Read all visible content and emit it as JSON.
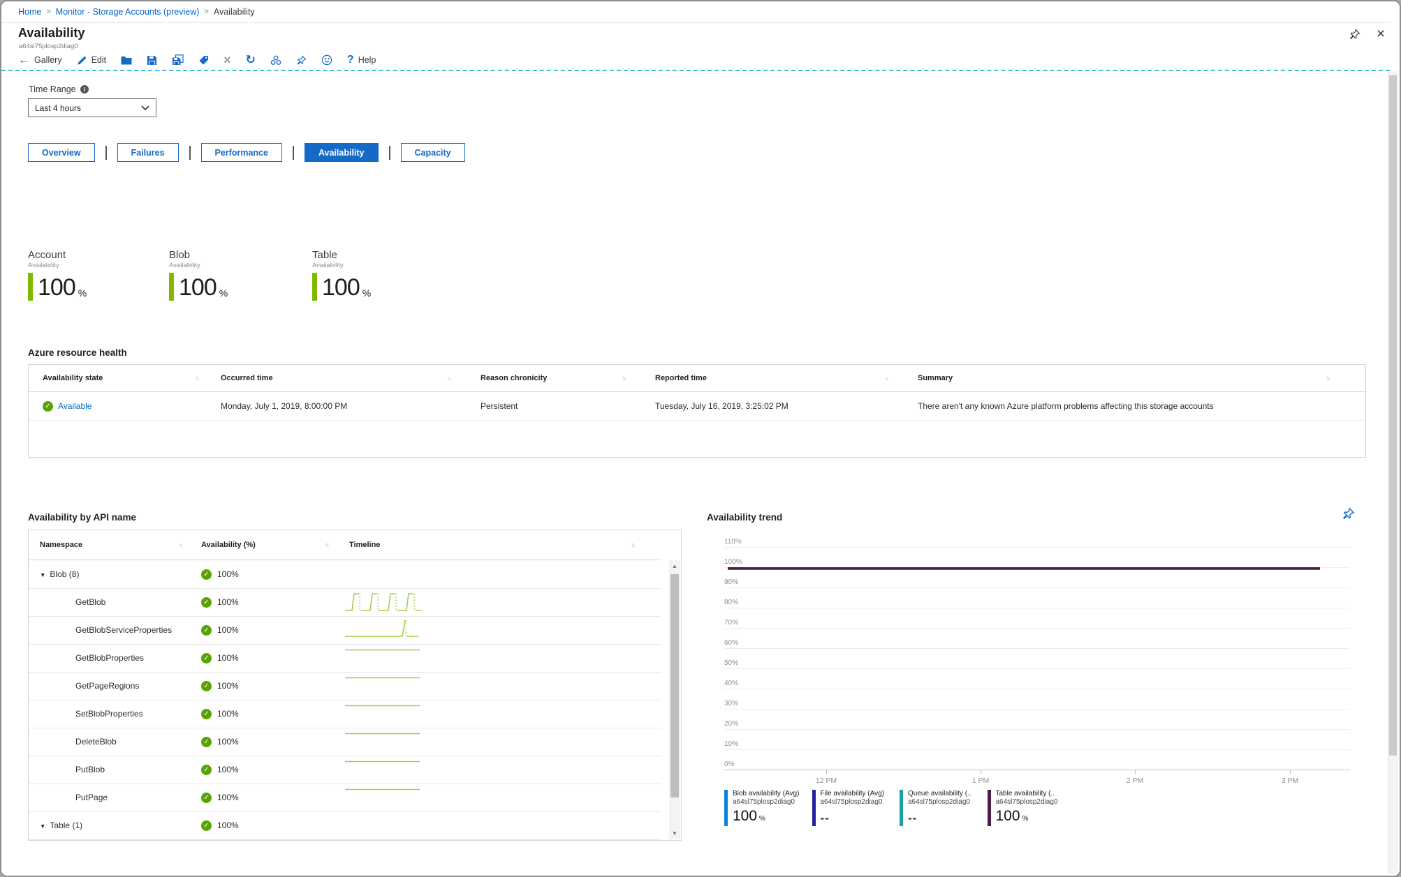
{
  "breadcrumb": {
    "items": [
      {
        "label": "Home",
        "link": true
      },
      {
        "label": "Monitor - Storage Accounts (preview)",
        "link": true
      },
      {
        "label": "Availability",
        "link": false
      }
    ],
    "separator": ">"
  },
  "header": {
    "title": "Availability",
    "subtitle": "a64sl75plosp2diag0"
  },
  "toolbar": {
    "items": [
      {
        "id": "gallery",
        "icon": "back-arrow",
        "label": "Gallery"
      },
      {
        "id": "edit",
        "icon": "pencil",
        "label": "Edit"
      },
      {
        "id": "open",
        "icon": "folder",
        "label": ""
      },
      {
        "id": "save",
        "icon": "save",
        "label": ""
      },
      {
        "id": "save-as",
        "icon": "save-copy",
        "label": ""
      },
      {
        "id": "tag",
        "icon": "tag",
        "label": ""
      },
      {
        "id": "discard",
        "icon": "close-x",
        "label": ""
      },
      {
        "id": "refresh",
        "icon": "refresh",
        "label": ""
      },
      {
        "id": "share",
        "icon": "cluster",
        "label": ""
      },
      {
        "id": "pin",
        "icon": "pin",
        "label": ""
      },
      {
        "id": "feedback",
        "icon": "smiley",
        "label": ""
      },
      {
        "id": "help",
        "icon": "question",
        "label": "Help"
      }
    ]
  },
  "time_range": {
    "label": "Time Range",
    "value": "Last 4 hours"
  },
  "tabs": [
    {
      "label": "Overview",
      "selected": false
    },
    {
      "label": "Failures",
      "selected": false
    },
    {
      "label": "Performance",
      "selected": false
    },
    {
      "label": "Availability",
      "selected": true
    },
    {
      "label": "Capacity",
      "selected": false
    }
  ],
  "metrics": [
    {
      "title": "Account",
      "subtitle": "Availability",
      "value": "100",
      "unit": "%"
    },
    {
      "title": "Blob",
      "subtitle": "Availability",
      "value": "100",
      "unit": "%"
    },
    {
      "title": "Table",
      "subtitle": "Availability",
      "value": "100",
      "unit": "%"
    }
  ],
  "resource_health": {
    "title": "Azure resource health",
    "columns": [
      "Availability state",
      "Occurred time",
      "Reason chronicity",
      "Reported time",
      "Summary"
    ],
    "rows": [
      {
        "state": "Available",
        "occurred_time": "Monday, July 1, 2019, 8:00:00 PM",
        "reason_chronicity": "Persistent",
        "reported_time": "Tuesday, July 16, 2019, 3:25:02 PM",
        "summary": "There aren't any known Azure platform problems affecting this storage accounts"
      }
    ]
  },
  "api_table": {
    "title": "Availability by API name",
    "columns": [
      "Namespace",
      "Availability (%)",
      "Timeline"
    ],
    "rows": [
      {
        "name": "Blob (8)",
        "group": true,
        "value": "100%",
        "spark": "none"
      },
      {
        "name": "GetBlob",
        "group": false,
        "value": "100%",
        "spark": "pulses"
      },
      {
        "name": "GetBlobServiceProperties",
        "group": false,
        "value": "100%",
        "spark": "spike"
      },
      {
        "name": "GetBlobProperties",
        "group": false,
        "value": "100%",
        "spark": "flat"
      },
      {
        "name": "GetPageRegions",
        "group": false,
        "value": "100%",
        "spark": "flat"
      },
      {
        "name": "SetBlobProperties",
        "group": false,
        "value": "100%",
        "spark": "flat"
      },
      {
        "name": "DeleteBlob",
        "group": false,
        "value": "100%",
        "spark": "flat"
      },
      {
        "name": "PutBlob",
        "group": false,
        "value": "100%",
        "spark": "flat"
      },
      {
        "name": "PutPage",
        "group": false,
        "value": "100%",
        "spark": "flat"
      },
      {
        "name": "Table (1)",
        "group": true,
        "value": "100%",
        "spark": "none"
      }
    ],
    "spark_color": "#a2ce4a"
  },
  "trend": {
    "title": "Availability trend"
  },
  "chart_data": {
    "type": "line",
    "title": "Availability trend",
    "x_ticks": [
      "12 PM",
      "1 PM",
      "2 PM",
      "3 PM"
    ],
    "y_ticks": [
      "110%",
      "100%",
      "90%",
      "80%",
      "70%",
      "60%",
      "50%",
      "40%",
      "30%",
      "20%",
      "10%",
      "0%"
    ],
    "ylim": [
      0,
      110
    ],
    "grid": true,
    "legend_position": "bottom",
    "series": [
      {
        "name": "Blob availability (Avg)",
        "resource": "a64sl75plosp2diag0",
        "color": "#0a85d4",
        "avg": "100",
        "unit": "%",
        "values": [
          100,
          100,
          100,
          100,
          100
        ]
      },
      {
        "name": "File availability (Avg)",
        "resource": "a64sl75plosp2diag0",
        "color": "#23239f",
        "avg": "--",
        "unit": "",
        "values": []
      },
      {
        "name": "Queue availability (..",
        "resource": "a64sl75plosp2diag0",
        "color": "#16a3a3",
        "avg": "--",
        "unit": "",
        "values": []
      },
      {
        "name": "Table availability (..",
        "resource": "a64sl75plosp2diag0",
        "color": "#4a1d44",
        "avg": "100",
        "unit": "%",
        "values": [
          100,
          100,
          100,
          100,
          100
        ]
      }
    ]
  }
}
